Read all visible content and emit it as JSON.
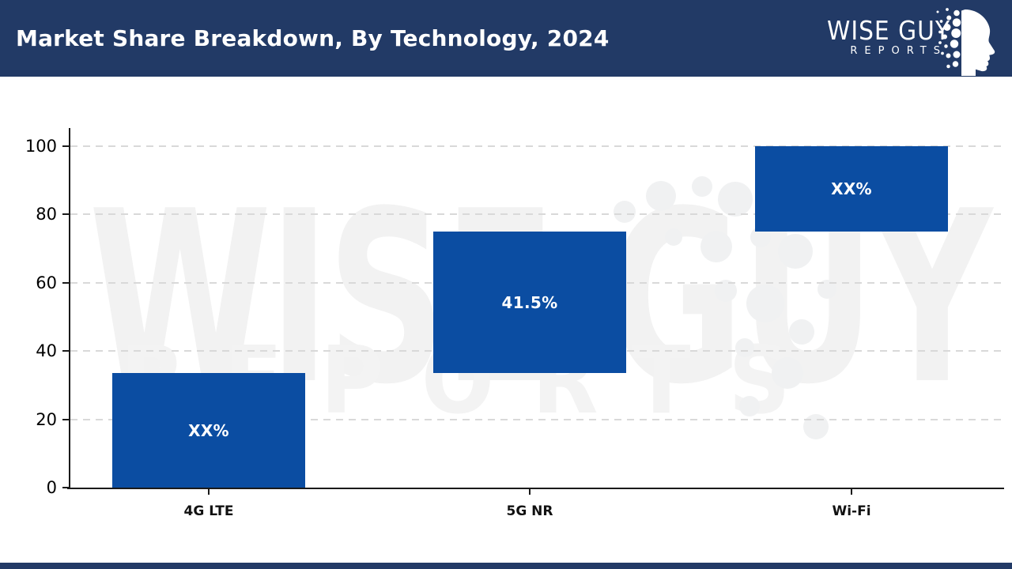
{
  "header": {
    "title": "Market Share Breakdown, By Technology, 2024",
    "logo": {
      "primary": "WISE GUY",
      "secondary": "REPORTS"
    }
  },
  "watermark": {
    "primary": "WISE GUY",
    "secondary": "REPORTS"
  },
  "colors": {
    "header_bg": "#223a66",
    "footer_bg": "#223a66",
    "bar": "#0b4da2",
    "grid": "#d9d9d9",
    "axis": "#1a1a1a",
    "bar_label_text": "#ffffff",
    "watermark": "#f2f2f2"
  },
  "chart_data": {
    "type": "bar",
    "subtype": "floating-segment-waterfall",
    "title": "Market Share Breakdown, By Technology, 2024",
    "categories": [
      "4G LTE",
      "5G NR",
      "Wi-Fi"
    ],
    "series": [
      {
        "name": "Market share (%)",
        "segments": [
          {
            "category": "4G LTE",
            "start": 0,
            "end": 33.5,
            "value_label": "XX%"
          },
          {
            "category": "5G NR",
            "start": 33.5,
            "end": 75,
            "value_label": "41.5%"
          },
          {
            "category": "Wi-Fi",
            "start": 75,
            "end": 100,
            "value_label": "XX%"
          }
        ]
      }
    ],
    "ylim": [
      0,
      100
    ],
    "yticks": [
      0,
      20,
      40,
      60,
      80,
      100
    ],
    "xlabel": "",
    "ylabel": "",
    "grid": "horizontal-dashed",
    "legend": "none"
  }
}
